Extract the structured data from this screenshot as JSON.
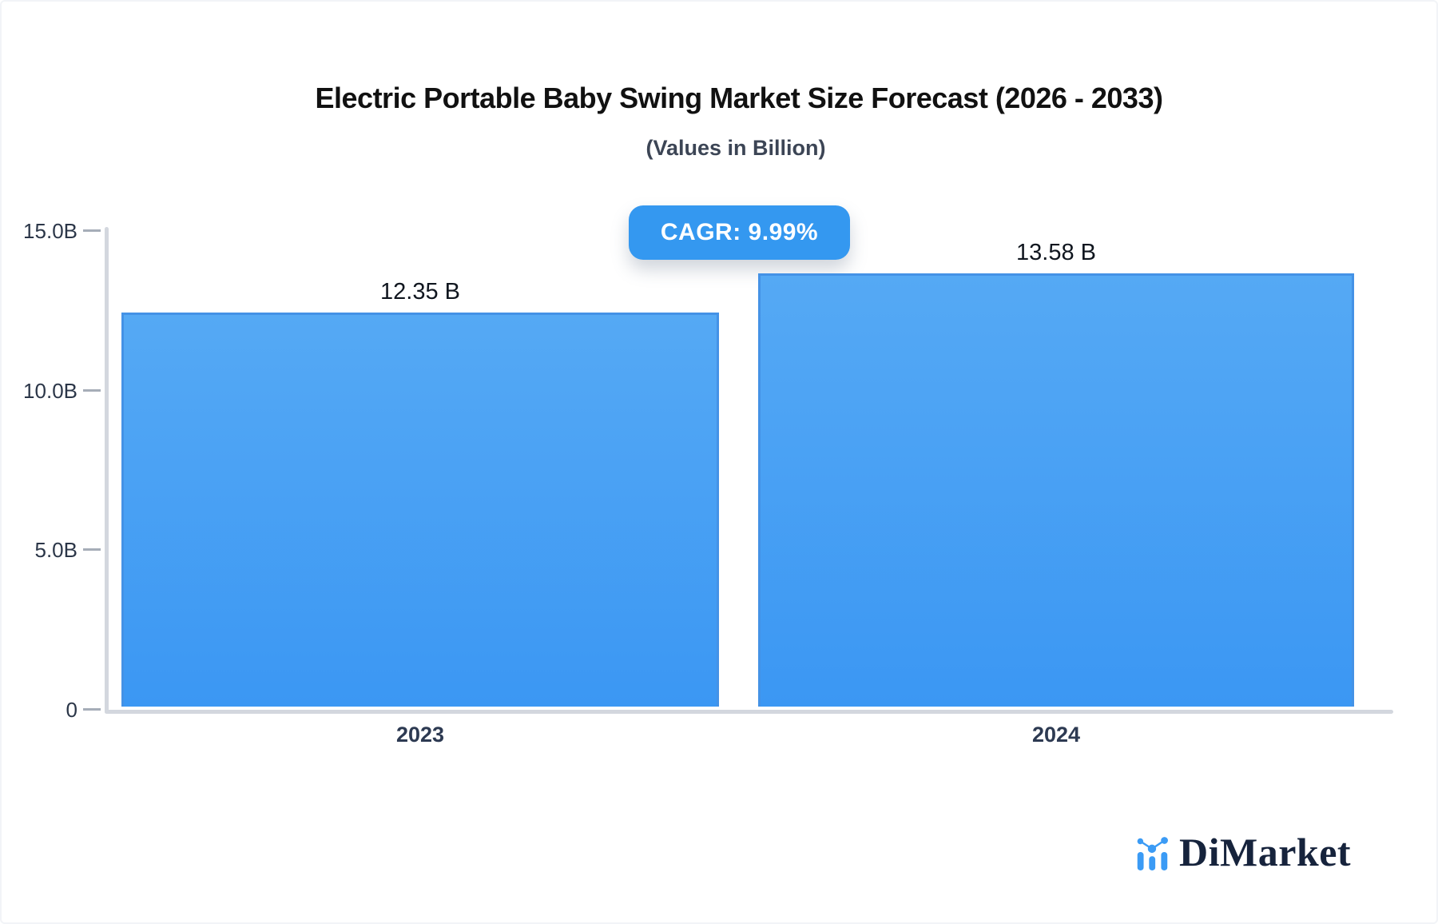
{
  "header": {
    "title": "Electric Portable Baby Swing Market Size Forecast (2026 - 2033)",
    "subtitle": "(Values in Billion)"
  },
  "badge": {
    "label": "CAGR: 9.99%",
    "background": "#3498f0",
    "text_color": "#ffffff"
  },
  "chart_data": {
    "type": "bar",
    "title": "Electric Portable Baby Swing Market Size Forecast (2026 - 2033)",
    "subtitle": "(Values in Billion)",
    "cagr_label": "CAGR: 9.99%",
    "categories": [
      "2023",
      "2024"
    ],
    "values": [
      12.35,
      13.58
    ],
    "value_labels": [
      "12.35 B",
      "13.58 B"
    ],
    "xlabel": "",
    "ylabel": "",
    "ylim": [
      0,
      15
    ],
    "yticks": [
      0,
      5,
      10,
      15
    ],
    "ytick_labels": [
      "0",
      "5.0B",
      "10.0B",
      "15.0B"
    ],
    "grid": false,
    "legend_position": "none",
    "bar_color_top": "#55a9f4",
    "bar_color_bottom": "#3b97f3",
    "bar_border_color": "#4492e6",
    "axis_color": "#d3d7de"
  },
  "footer": {
    "logo_text": "DiMarket",
    "logo_icon": "bar-chart-trend-icon",
    "logo_icon_color": "#3b9bf5",
    "logo_text_color": "#16233c"
  }
}
